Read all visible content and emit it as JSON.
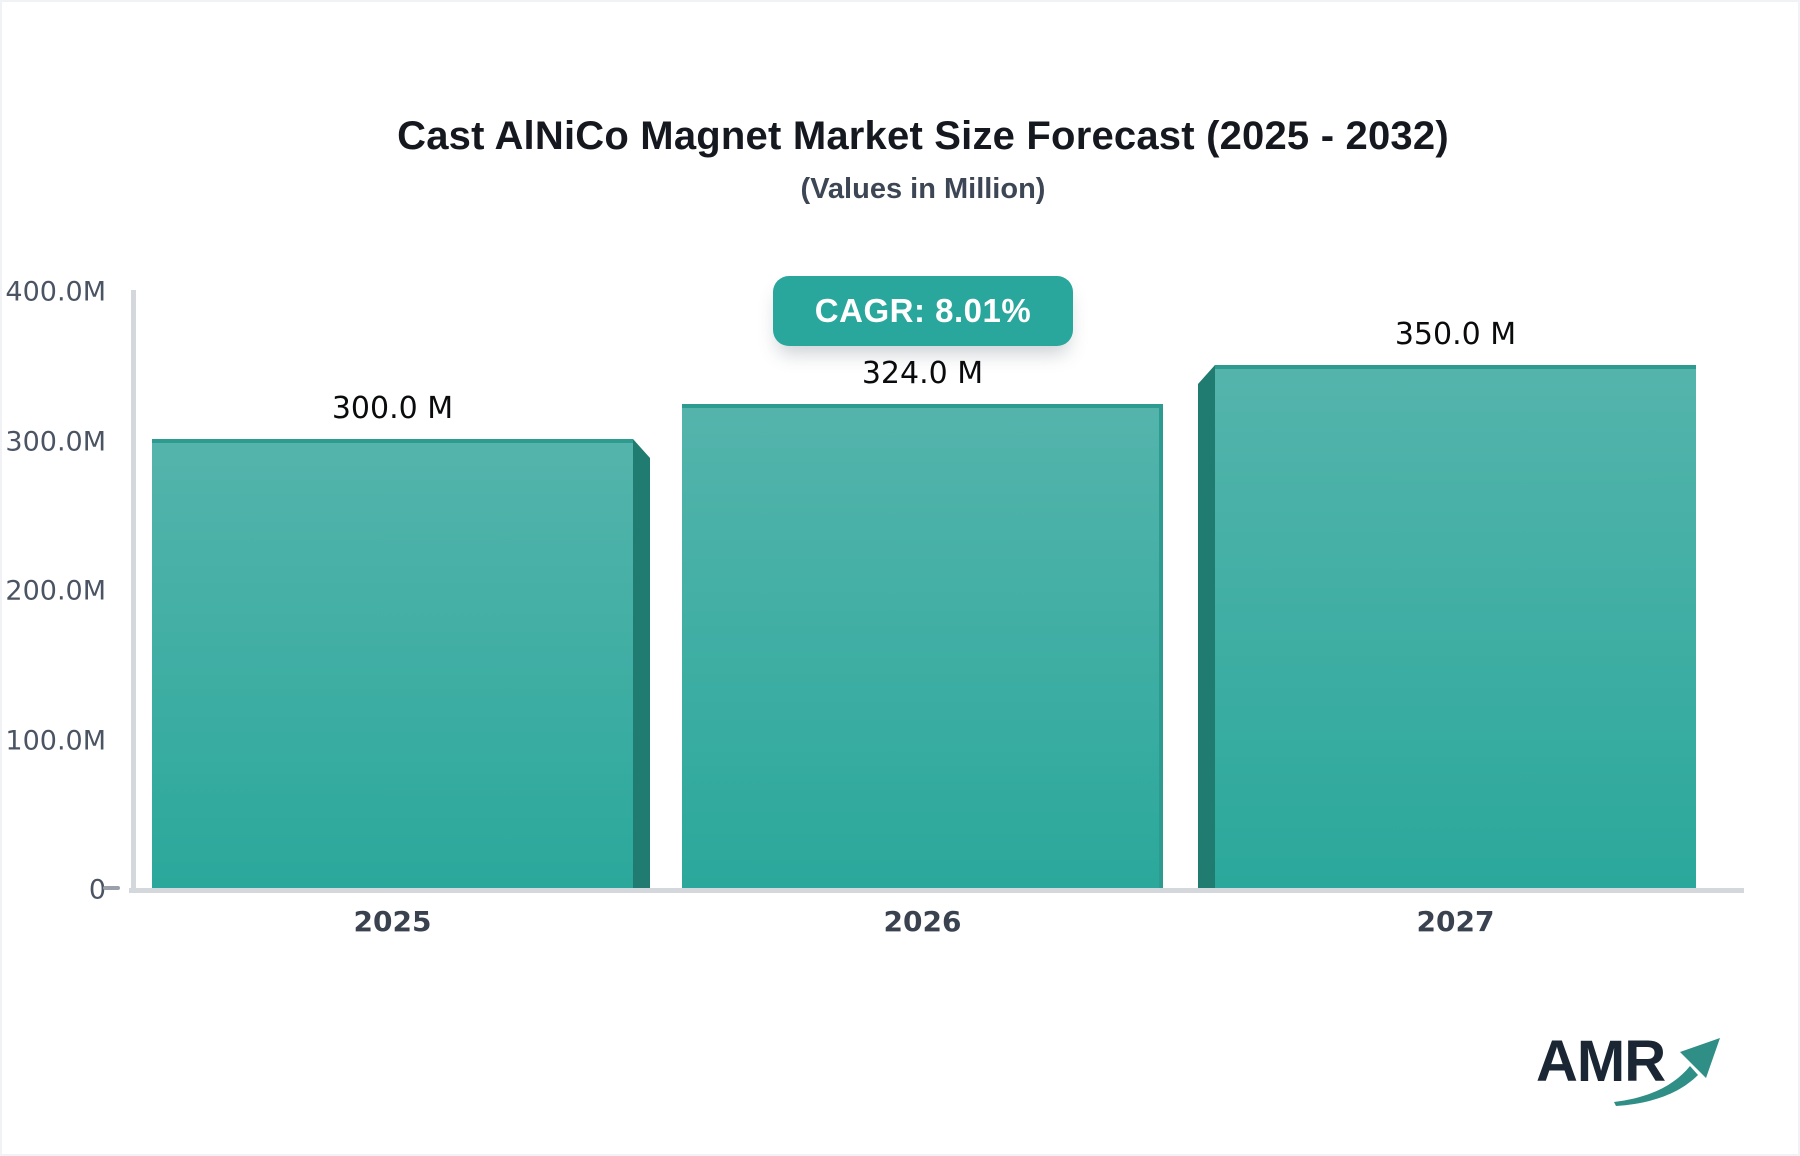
{
  "header": {
    "title": "Cast AlNiCo Magnet Market Size Forecast (2025 - 2032)",
    "subtitle": "(Values in Million)",
    "cagr_badge": "CAGR: 8.01%"
  },
  "branding": {
    "logo_text": "AMR"
  },
  "colors": {
    "badge_teal": "#2aa79d",
    "bar_gradient_top": "#54b4ac",
    "bar_gradient_bottom": "#2ba89b",
    "bar_edge": "#2e9b91",
    "bar_side_3d": "#207b70",
    "axis_line": "#d4d7dc",
    "tick_text": "#4a5463",
    "logo_navy": "#1a2634",
    "logo_arrow_teal": "#2f8e86"
  },
  "chart_data": {
    "type": "bar",
    "title": "Cast AlNiCo Magnet Market Size Forecast (2025 - 2032)",
    "subtitle": "(Values in Million)",
    "annotation": "CAGR: 8.01%",
    "categories": [
      "2025",
      "2026",
      "2027"
    ],
    "values": [
      300.0,
      324.0,
      350.0
    ],
    "value_labels": [
      "300.0 M",
      "324.0 M",
      "350.0 M"
    ],
    "unit": "Million",
    "ylim": [
      0,
      400
    ],
    "yticks": [
      {
        "value": 400,
        "label": "400.0M"
      },
      {
        "value": 300,
        "label": "300.0M"
      },
      {
        "value": 200,
        "label": "200.0M"
      },
      {
        "value": 100,
        "label": "100.0M"
      },
      {
        "value": 0,
        "label": "0"
      }
    ],
    "grid": "off",
    "legend": "none",
    "bar_3d_sides": [
      "right",
      "none",
      "left"
    ]
  }
}
